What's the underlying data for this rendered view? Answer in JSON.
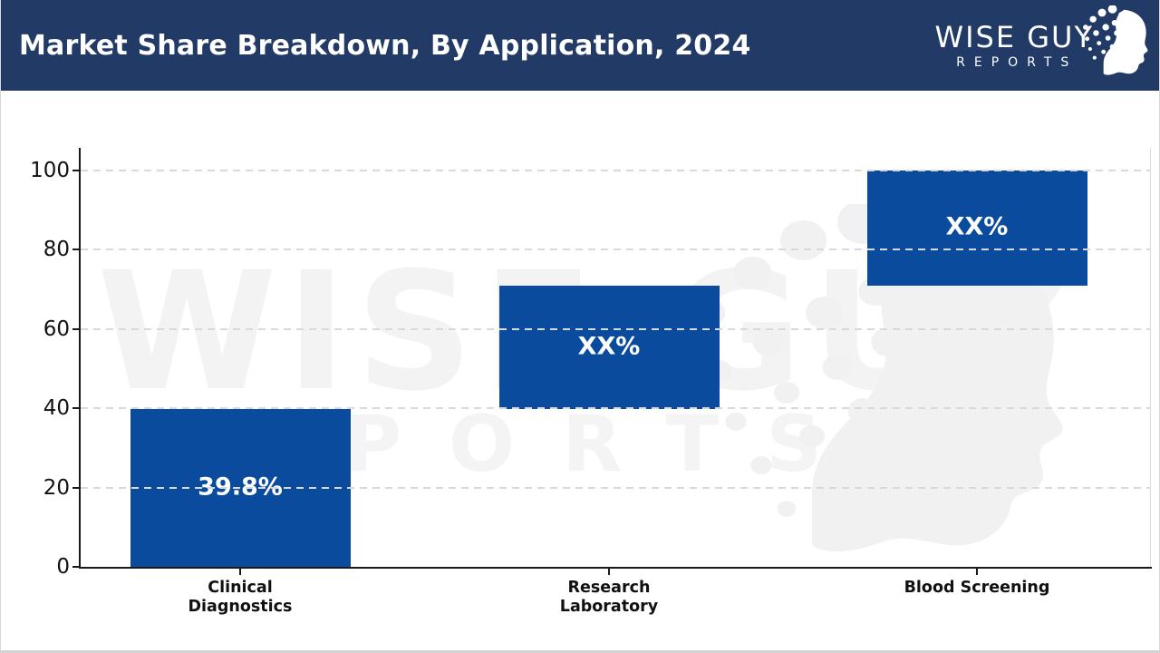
{
  "header": {
    "title": "Market Share Breakdown, By Application, 2024",
    "brand_name": "WISE GUY",
    "brand_subtitle": "REPORTS",
    "bg_color": "#213a66"
  },
  "watermark": {
    "brand_name": "WISE GUY",
    "brand_subtitle": "REPORTS"
  },
  "chart_data": {
    "type": "bar",
    "subtype": "stacked-waterfall",
    "title": "Market Share Breakdown, By Application, 2024",
    "categories": [
      "Clinical Diagnostics",
      "Research Laboratory",
      "Blood Screening"
    ],
    "category_display_lines": [
      [
        "Clinical",
        "Diagnostics"
      ],
      [
        "Research",
        "Laboratory"
      ],
      [
        "Blood Screening"
      ]
    ],
    "segments": [
      {
        "category": "Clinical Diagnostics",
        "start": 0,
        "end": 39.8,
        "label": "39.8%"
      },
      {
        "category": "Research Laboratory",
        "start": 39.8,
        "end": 70.8,
        "label": "XX%"
      },
      {
        "category": "Blood Screening",
        "start": 70.8,
        "end": 100,
        "label": "XX%"
      }
    ],
    "xlabel": "",
    "ylabel": "",
    "ylim": [
      0,
      100
    ],
    "yticks": [
      0,
      20,
      40,
      60,
      80,
      100
    ],
    "grid": "horizontal-dashed",
    "legend": "none",
    "bar_color": "#0b4b9e",
    "bar_label_color": "#ffffff",
    "grid_color": "#d9d9d9",
    "axis_color": "#1a1a1a"
  }
}
